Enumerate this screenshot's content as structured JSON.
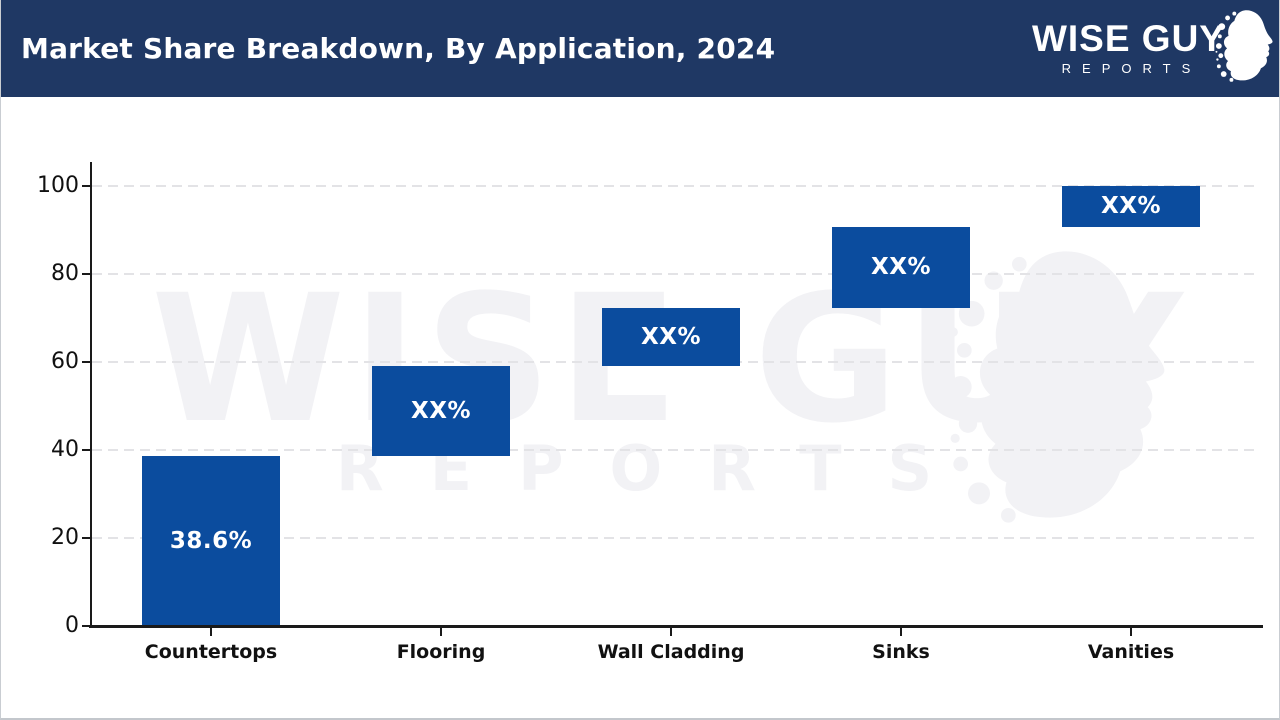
{
  "header": {
    "title": "Market Share Breakdown, By Application, 2024",
    "background_color": "#1F3864",
    "logo": {
      "wordmark": "WISE GUY",
      "subtext": "REPORTS",
      "head_icon": "dotted-face-profile"
    }
  },
  "watermark": {
    "wordmark": "WISE GUY",
    "subtext": "REPORTS",
    "head_icon": "dotted-face-profile"
  },
  "chart_data": {
    "type": "bar",
    "subtype": "waterfall",
    "title": "Market Share Breakdown, By Application, 2024",
    "categories": [
      "Countertops",
      "Flooring",
      "Wall Cladding",
      "Sinks",
      "Vanities"
    ],
    "segments": [
      {
        "category": "Countertops",
        "start": 0,
        "end": 38.6,
        "label": "38.6%"
      },
      {
        "category": "Flooring",
        "start": 38.6,
        "end": 59.2,
        "label": "XX%"
      },
      {
        "category": "Wall Cladding",
        "start": 59.2,
        "end": 72.3,
        "label": "XX%"
      },
      {
        "category": "Sinks",
        "start": 72.3,
        "end": 90.7,
        "label": "XX%"
      },
      {
        "category": "Vanities",
        "start": 90.7,
        "end": 100,
        "label": "XX%"
      }
    ],
    "yticks": [
      0,
      20,
      40,
      60,
      80,
      100
    ],
    "ylim": [
      0,
      105
    ],
    "xlabel": "",
    "ylabel": "",
    "bar_color": "#0B4C9E",
    "bar_label_color": "#ffffff",
    "grid": {
      "horizontal": true,
      "style": "dashed",
      "color": "#e3e3e6"
    },
    "legend": "none"
  }
}
